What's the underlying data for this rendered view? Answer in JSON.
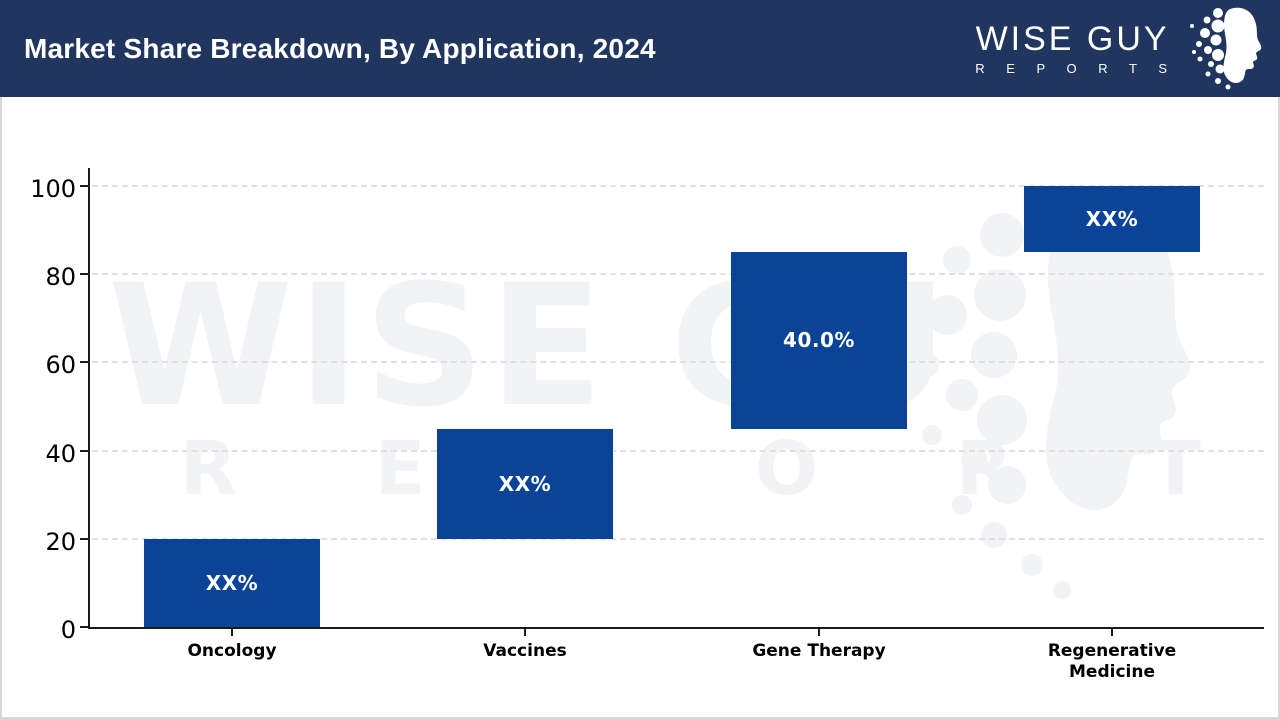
{
  "header": {
    "title": "Market Share Breakdown, By Application, 2024",
    "logo": {
      "brand_line1": "WISE GUY",
      "brand_line2": "R E P O R T S"
    }
  },
  "watermark": {
    "line1": "WISE GU",
    "line2": "R E P O R T S"
  },
  "colors": {
    "header_bg": "#21365f",
    "bar": "#0b4397",
    "bar_label": "#ffffff",
    "axis": "#000000",
    "grid": "#e0e0e0",
    "watermark": "#f2f3f5",
    "frame_border": "#d8d8d8"
  },
  "chart_data": {
    "type": "bar",
    "subtype": "waterfall",
    "title": "Market Share Breakdown, By Application, 2024",
    "categories": [
      "Oncology",
      "Vaccines",
      "Gene Therapy",
      "Regenerative Medicine"
    ],
    "series": [
      {
        "name": "Market share (%)",
        "segments": [
          {
            "category": "Oncology",
            "start": 0,
            "end": 20,
            "label": "XX%"
          },
          {
            "category": "Vaccines",
            "start": 20,
            "end": 45,
            "label": "XX%"
          },
          {
            "category": "Gene Therapy",
            "start": 45,
            "end": 85,
            "label": "40.0%"
          },
          {
            "category": "Regenerative Medicine",
            "start": 85,
            "end": 100,
            "label": "XX%"
          }
        ]
      }
    ],
    "xlabel": "",
    "ylabel": "",
    "ylim": [
      0,
      100
    ],
    "yticks": [
      0,
      20,
      40,
      60,
      80,
      100
    ],
    "grid": "horizontal-dashed",
    "legend": "none",
    "bar_color": "#0b4397",
    "value_label_color": "#ffffff"
  }
}
